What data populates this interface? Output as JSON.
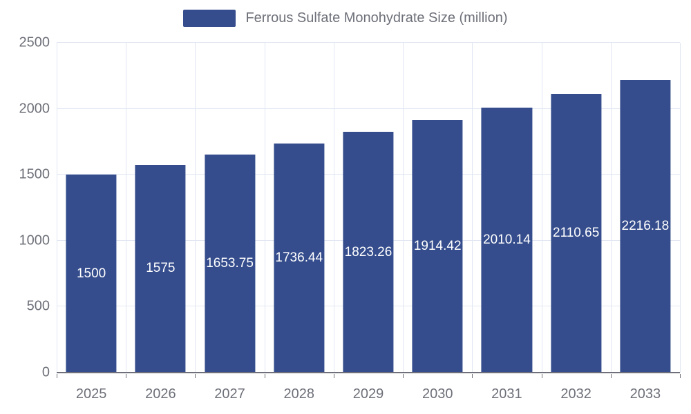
{
  "legend": {
    "label": "Ferrous Sulfate Monohydrate Size (million)",
    "swatch_color": "#354d8c"
  },
  "chart_data": {
    "type": "bar",
    "title": "Ferrous Sulfate Monohydrate Size (million)",
    "categories": [
      "2025",
      "2026",
      "2027",
      "2028",
      "2029",
      "2030",
      "2031",
      "2032",
      "2033"
    ],
    "values": [
      1500,
      1575,
      1653.75,
      1736.44,
      1823.26,
      1914.42,
      2010.14,
      2110.65,
      2216.18
    ],
    "value_labels": [
      "1500",
      "1575",
      "1653.75",
      "1736.44",
      "1823.26",
      "1914.42",
      "2010.14",
      "2110.65",
      "2216.18"
    ],
    "xlabel": "",
    "ylabel": "",
    "ylim": [
      0,
      2500
    ],
    "yticks": [
      0,
      500,
      1000,
      1500,
      2000,
      2500
    ],
    "grid": true,
    "legend_position": "top",
    "bar_color": "#354d8c",
    "label_color": "#ffffff",
    "axis_text_color": "#6e7079",
    "gridline_color": "#e0e6f1"
  }
}
